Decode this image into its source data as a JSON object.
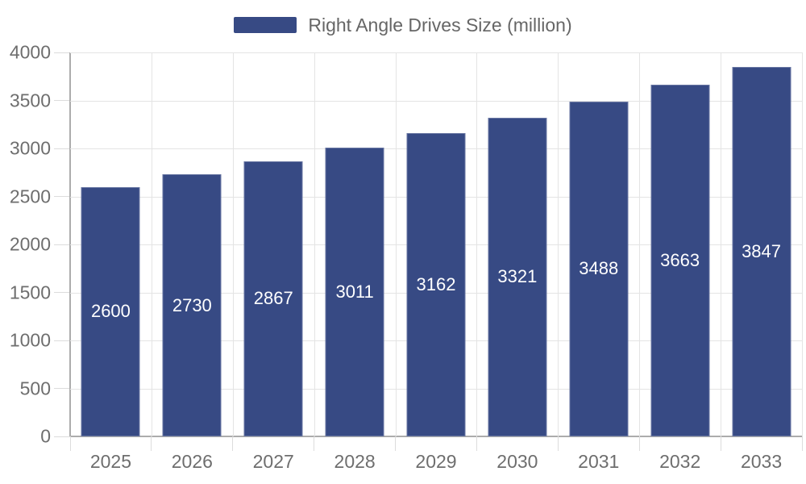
{
  "legend": {
    "label": "Right Angle Drives Size (million)"
  },
  "chart_data": {
    "type": "bar",
    "title": "Right Angle Drives Size (million)",
    "categories": [
      "2025",
      "2026",
      "2027",
      "2028",
      "2029",
      "2030",
      "2031",
      "2032",
      "2033"
    ],
    "series": [
      {
        "name": "Right Angle Drives Size (million)",
        "values": [
          2600,
          2730,
          2867,
          3011,
          3162,
          3321,
          3488,
          3663,
          3847
        ]
      }
    ],
    "xlabel": "",
    "ylabel": "",
    "ylim": [
      0,
      4000
    ],
    "yticks": [
      0,
      500,
      1000,
      1500,
      2000,
      2500,
      3000,
      3500,
      4000
    ],
    "grid": true,
    "legend_position": "top",
    "value_labels_position": "inside-center",
    "colors": {
      "bar": "#374A84",
      "value_label": "#FFFFFF",
      "axis_label": "#6E6E6E",
      "legend_text": "#666666",
      "gridline": "#E4E4E4",
      "axis_line": "#ACACAC",
      "tick": "#DCDCDC",
      "background": "#FFFFFF"
    }
  }
}
